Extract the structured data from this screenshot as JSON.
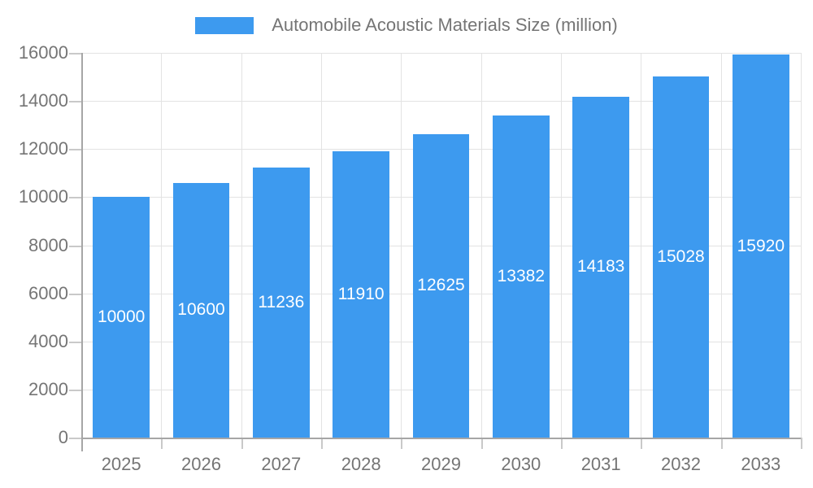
{
  "legend": {
    "label": "Automobile Acoustic Materials Size (million)"
  },
  "chart_data": {
    "type": "bar",
    "title": "Automobile Acoustic Materials Size (million)",
    "categories": [
      "2025",
      "2026",
      "2027",
      "2028",
      "2029",
      "2030",
      "2031",
      "2032",
      "2033"
    ],
    "values": [
      10000,
      10600,
      11236,
      11910,
      12625,
      13382,
      14183,
      15028,
      15920
    ],
    "xlabel": "",
    "ylabel": "",
    "ylim": [
      0,
      16000
    ],
    "yticks": [
      0,
      2000,
      4000,
      6000,
      8000,
      10000,
      12000,
      14000,
      16000
    ],
    "grid": true,
    "legend_position": "top-center",
    "bar_labels_inside": true,
    "colors": {
      "bar": "#3d9aef",
      "bar_label": "#ffffff",
      "axis": "#a6a6a6",
      "tick": "#c9c9c9",
      "grid": "#e3e3e3",
      "text": "#757575",
      "background": "#ffffff"
    }
  }
}
